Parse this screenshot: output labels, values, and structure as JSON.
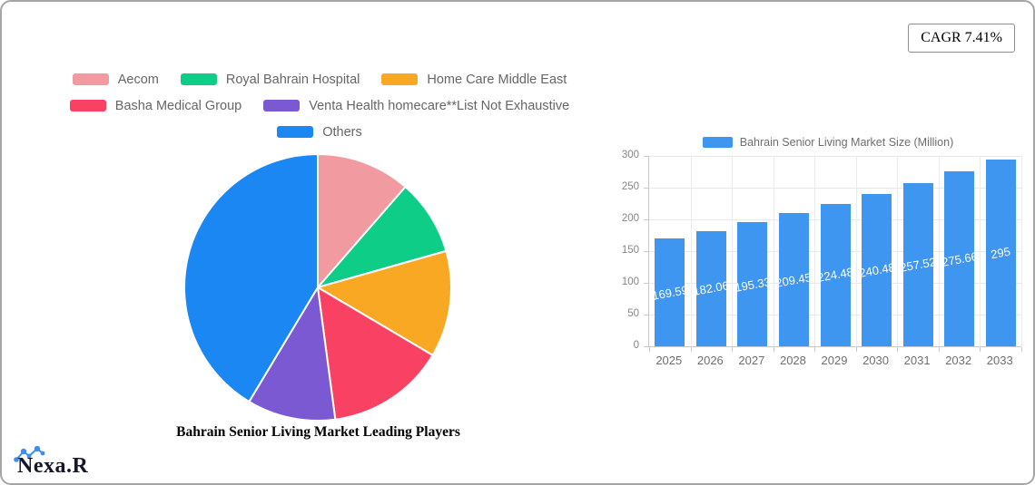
{
  "page": {
    "cagr_badge": "CAGR 7.41%",
    "logo_text": "Nexa.R",
    "border_color": "#a5a5a5"
  },
  "icons": {
    "logo_network": "connected-dots-line-chart",
    "legend_swatch": "color-rect",
    "color_blue": "#3f8df0"
  },
  "chart_data": [
    {
      "type": "pie",
      "title": "Bahrain Senior Living Market Leading Players",
      "legend_position": "top",
      "direction": "clockwise",
      "start_angle_deg": 0,
      "values_estimated": true,
      "slices": [
        {
          "label": "Aecom",
          "value": 11.4,
          "color": "#f19ba0"
        },
        {
          "label": "Royal Bahrain Hospital",
          "value": 9.2,
          "color": "#0ecd87"
        },
        {
          "label": "Home Care Middle East",
          "value": 12.9,
          "color": "#f9a823"
        },
        {
          "label": "Basha Medical Group",
          "value": 14.4,
          "color": "#f94263"
        },
        {
          "label": "Venta Health homecare**List Not Exhaustive",
          "value": 10.7,
          "color": "#7b59d3"
        },
        {
          "label": "Others",
          "value": 41.4,
          "color": "#1b87f2"
        }
      ]
    },
    {
      "type": "bar",
      "legend": "Bahrain Senior Living Market Size (Million)",
      "legend_position": "top",
      "categories": [
        "2025",
        "2026",
        "2027",
        "2028",
        "2029",
        "2030",
        "2031",
        "2032",
        "2033"
      ],
      "values": [
        169.59,
        182.06,
        195.33,
        209.45,
        224.48,
        240.48,
        257.52,
        275.66,
        295
      ],
      "bar_color": "#3e96f0",
      "value_label_color": "#ffffff",
      "ylim": [
        0,
        300
      ],
      "ytick_step": 50,
      "grid": true
    }
  ]
}
